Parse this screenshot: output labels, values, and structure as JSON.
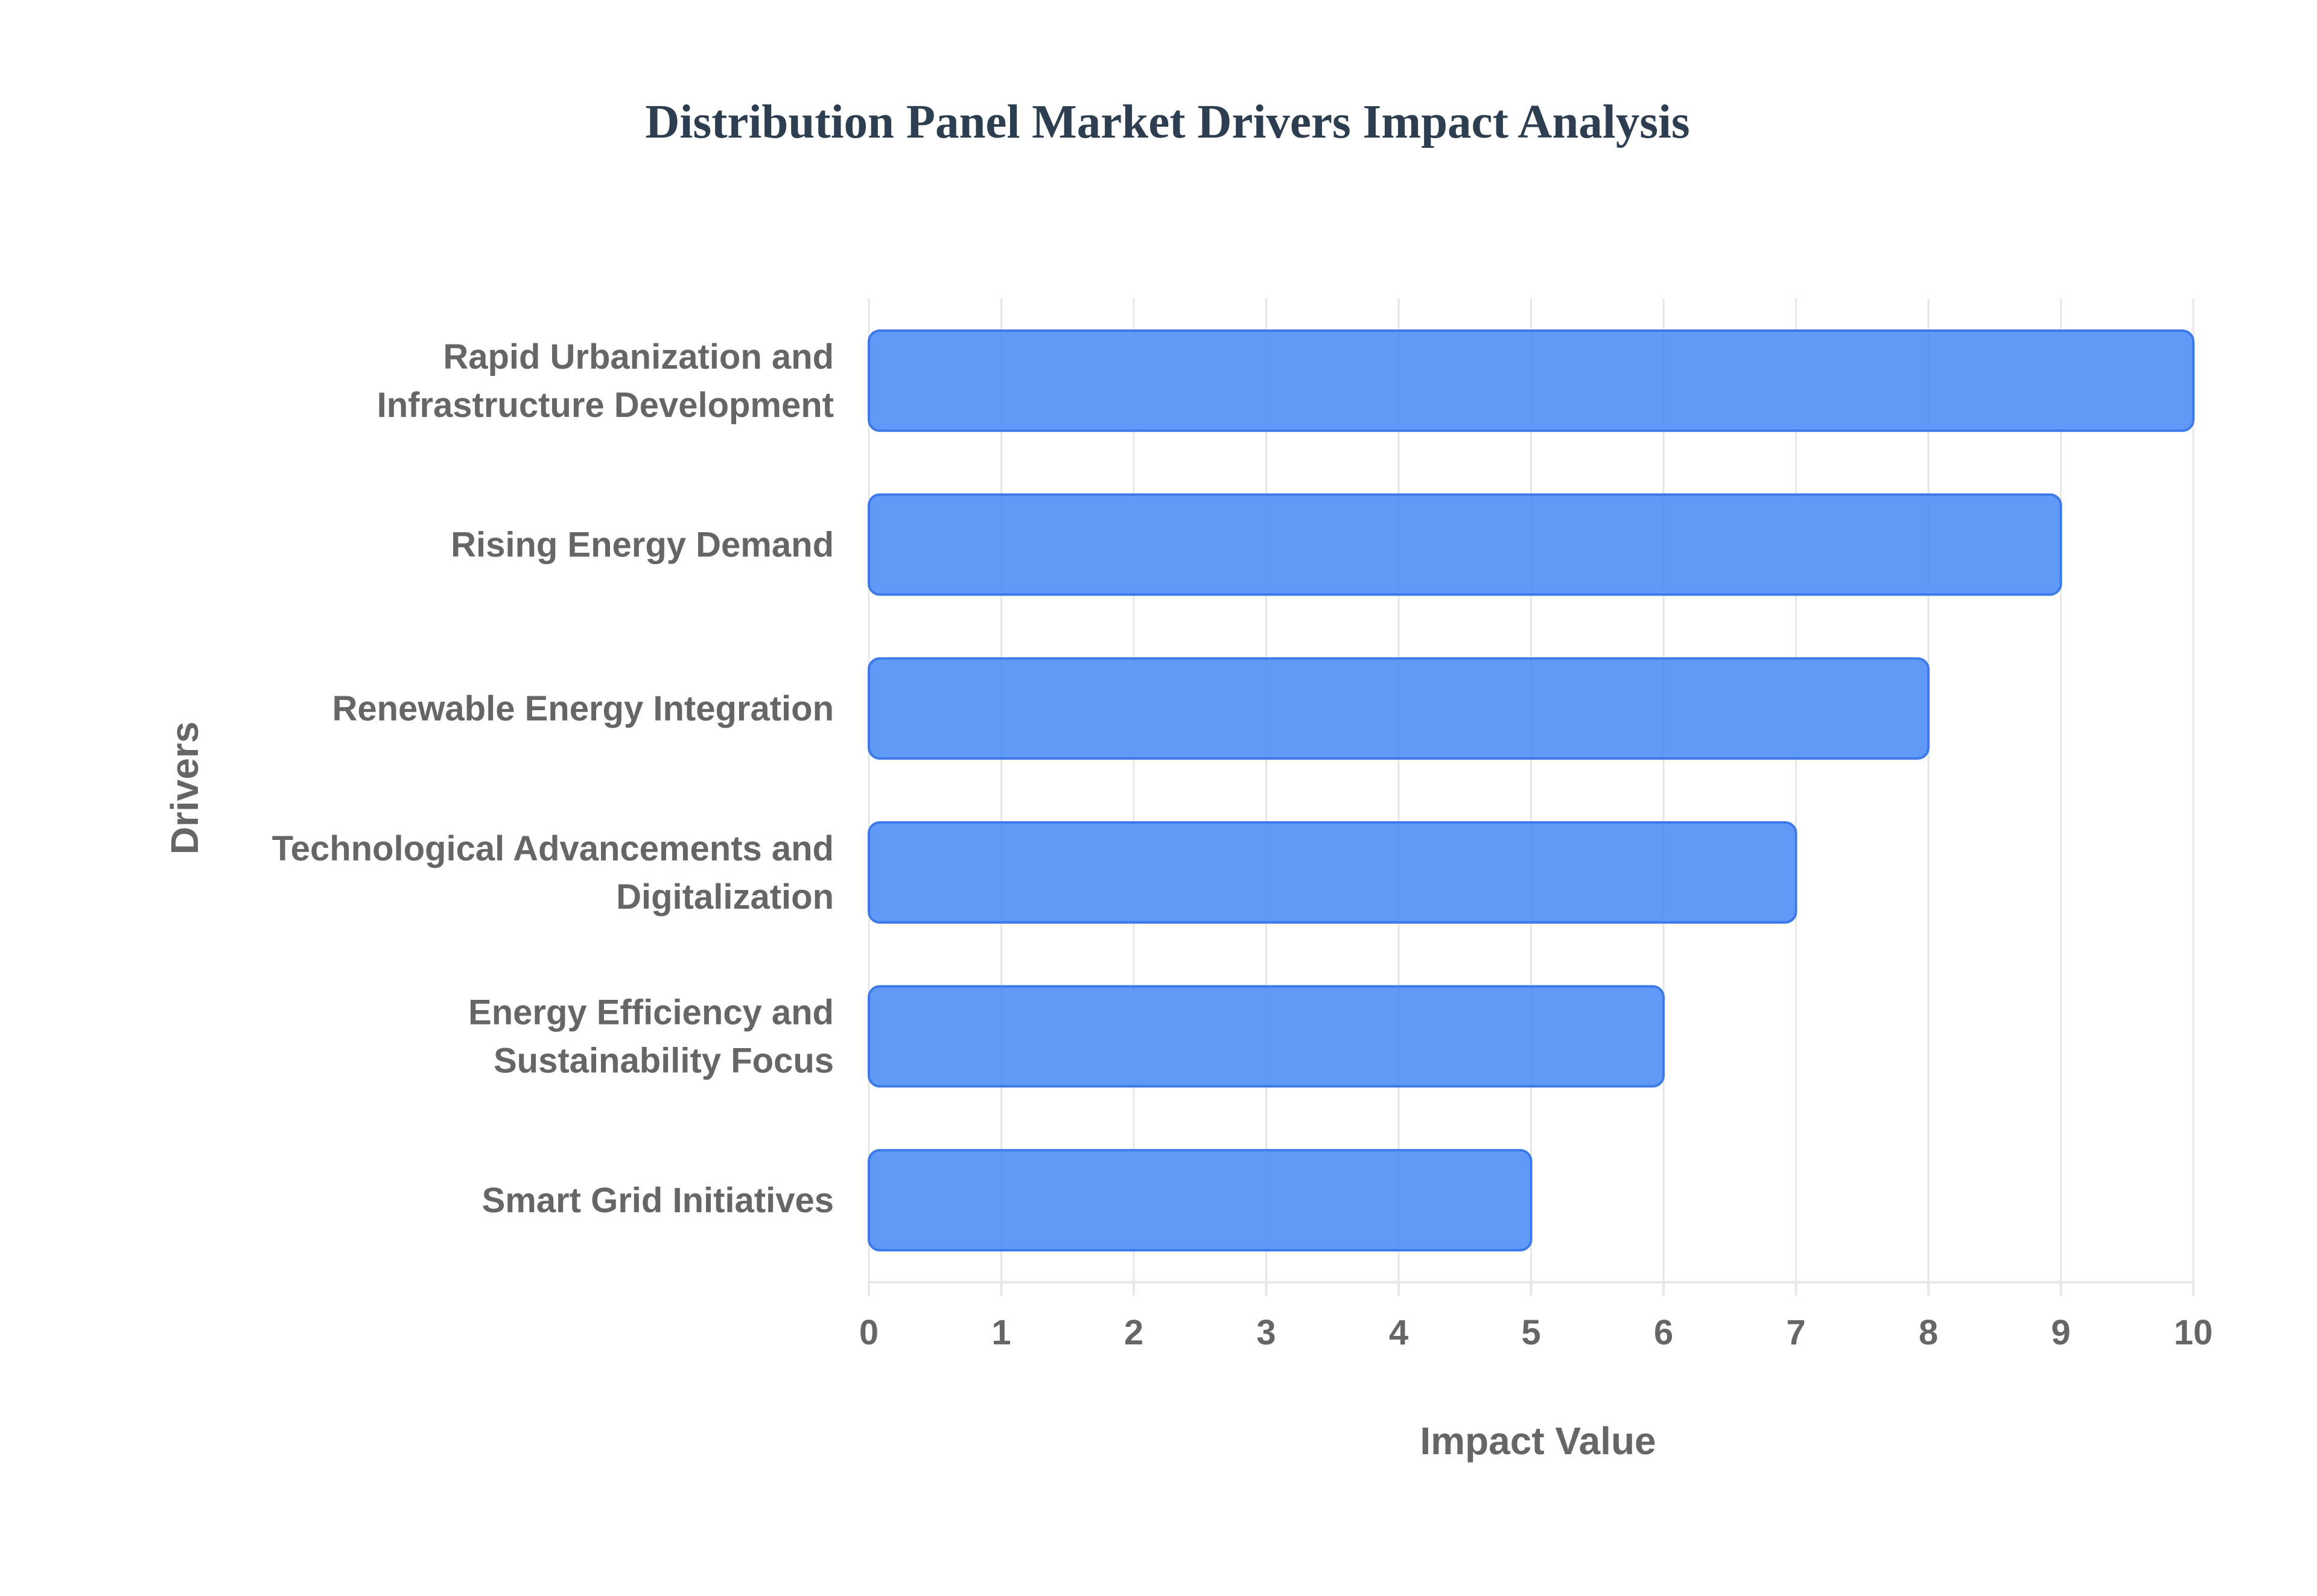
{
  "chart_data": {
    "type": "bar",
    "orientation": "horizontal",
    "title": "Distribution Panel Market Drivers Impact Analysis",
    "xlabel": "Impact Value",
    "ylabel": "Drivers",
    "categories": [
      [
        "Rapid Urbanization and",
        "Infrastructure Development"
      ],
      [
        "Rising Energy Demand"
      ],
      [
        "Renewable Energy Integration"
      ],
      [
        "Technological Advancements and",
        "Digitalization"
      ],
      [
        "Energy Efficiency and",
        "Sustainability Focus"
      ],
      [
        "Smart Grid Initiatives"
      ]
    ],
    "values": [
      10,
      9,
      8,
      7,
      6,
      5
    ],
    "xlim": [
      0,
      10
    ],
    "xticks": [
      0,
      1,
      2,
      3,
      4,
      5,
      6,
      7,
      8,
      9,
      10
    ],
    "grid": true,
    "legend": "none",
    "colors": {
      "bar_fill": "#4f8ef7",
      "bar_stroke": "#3b7ae8",
      "title": "#2c3e50",
      "axis_text": "#666666",
      "grid": "#e6e6e6"
    }
  }
}
